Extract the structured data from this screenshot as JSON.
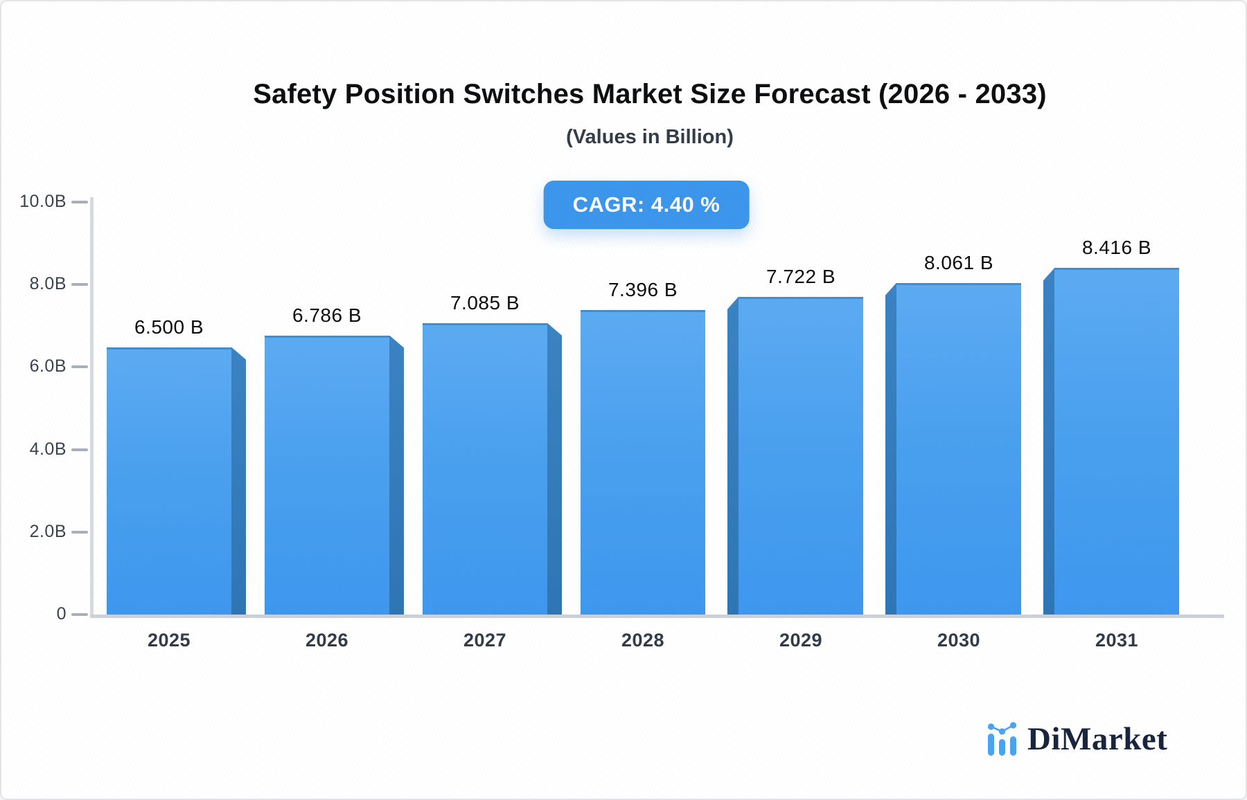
{
  "chart_data": {
    "type": "bar",
    "title": "Safety Position Switches Market Size Forecast (2026 - 2033)",
    "subtitle": "(Values in Billion)",
    "cagr_label": "CAGR: 4.40 %",
    "categories": [
      "2025",
      "2026",
      "2027",
      "2028",
      "2029",
      "2030",
      "2031"
    ],
    "values": [
      6.5,
      6.786,
      7.085,
      7.396,
      7.722,
      8.061,
      8.416
    ],
    "value_labels": [
      "6.500 B",
      "6.786 B",
      "7.085 B",
      "7.396 B",
      "7.722 B",
      "8.061 B",
      "8.416 B"
    ],
    "unit": "Billion",
    "ylabel_ticks": [
      "10.0B",
      "8.0B",
      "6.0B",
      "4.0B",
      "2.0B",
      "0"
    ],
    "ytick_values": [
      10,
      8,
      6,
      4,
      2,
      0
    ],
    "ylim": [
      0,
      10
    ],
    "grid": "off",
    "legend": "none",
    "bar_color": "#4aa0ef",
    "bar_side_color": "#2d75b4",
    "badge_color": "#3b95eb"
  },
  "brand": {
    "name": "DiMarket",
    "icon": "mini-bar-chart-icon",
    "icon_color": "#4aa2f0",
    "text_color": "#18233d"
  }
}
